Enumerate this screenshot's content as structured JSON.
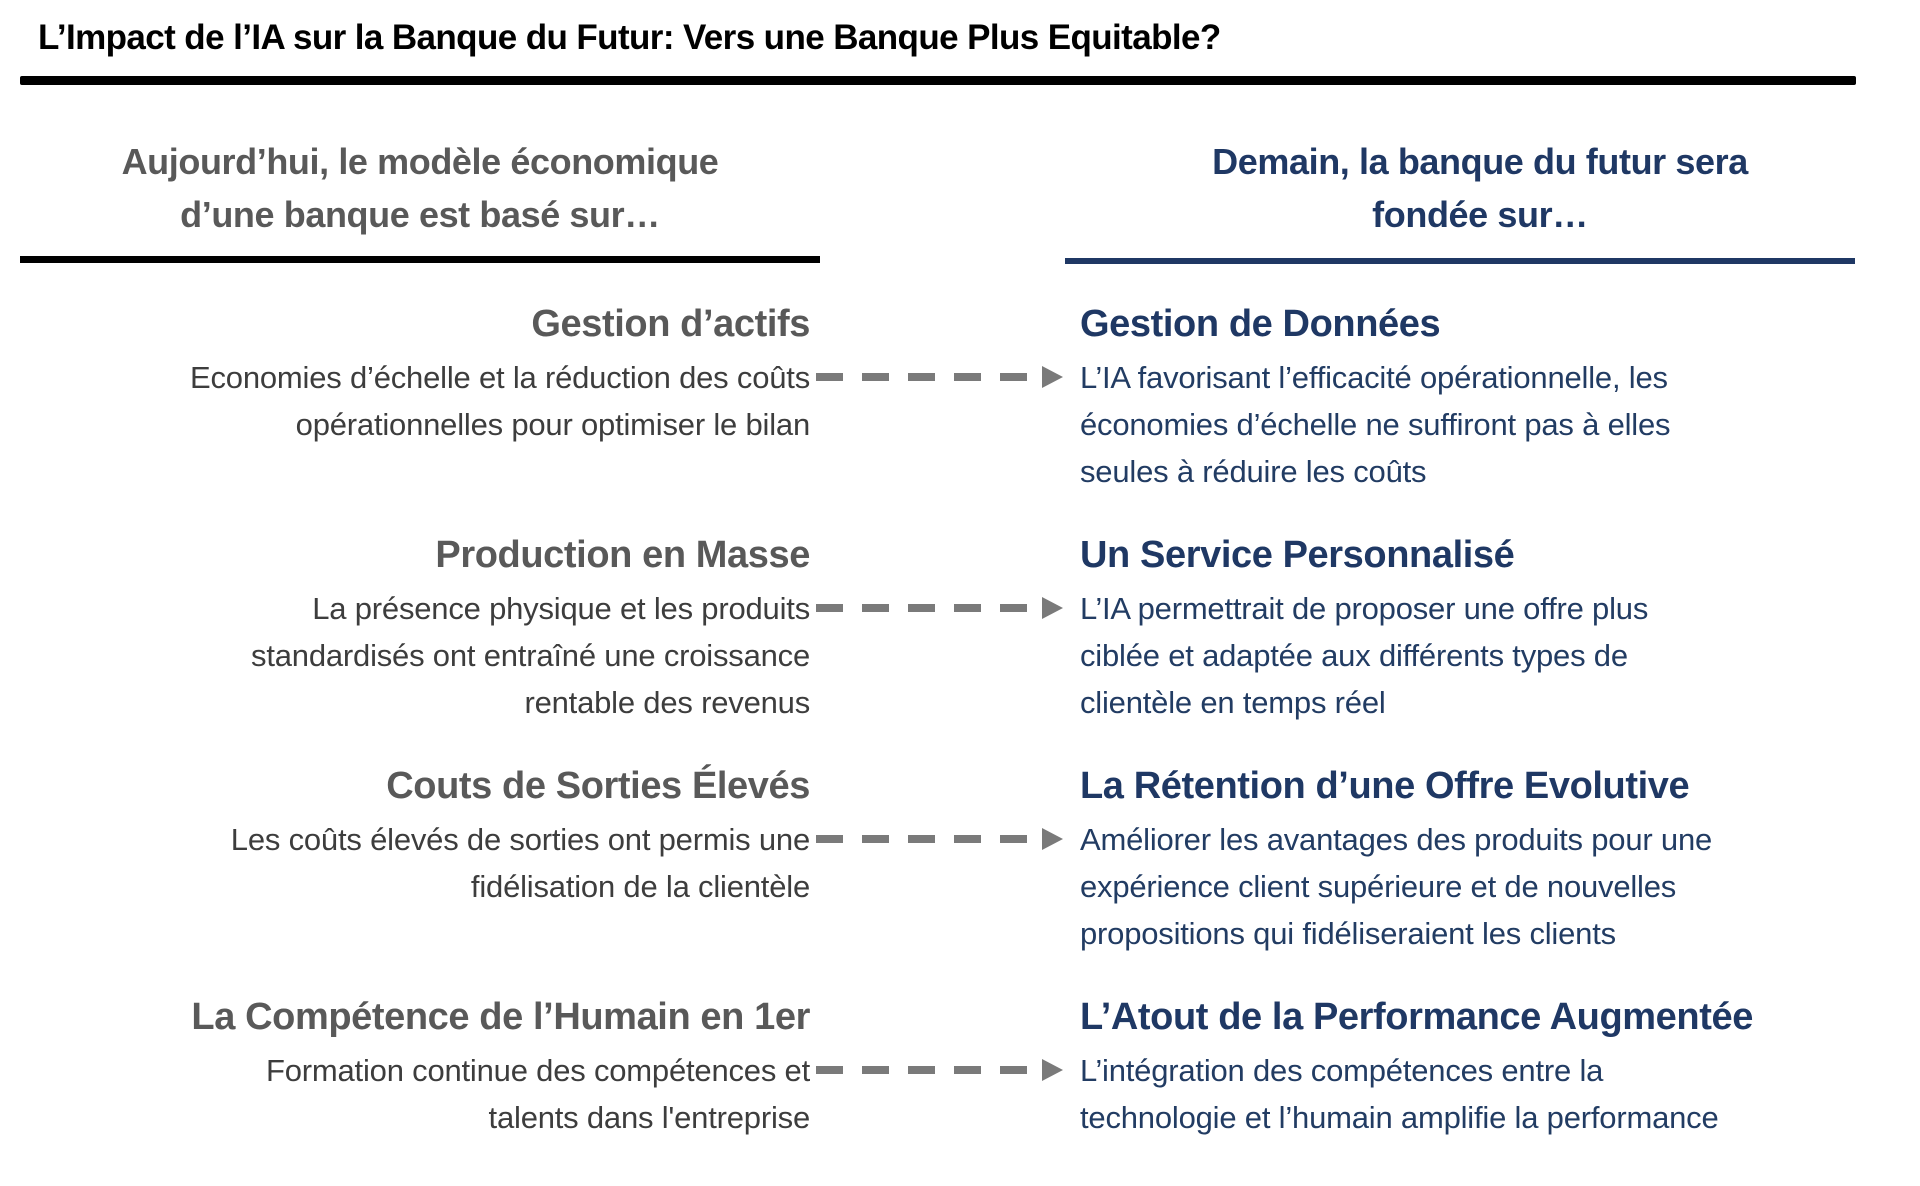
{
  "title": "L’Impact de l’IA sur la Banque du Futur: Vers une Banque Plus Equitable?",
  "colors": {
    "title_black": "#000000",
    "today_gray": "#595959",
    "today_body_gray": "#3d3d3d",
    "future_navy": "#1f3864",
    "future_body_navy": "#223c63",
    "arrow_gray": "#7a7a7a"
  },
  "columns": {
    "left": {
      "header": "Aujourd’hui, le modèle économique\nd’une banque est basé sur…"
    },
    "right": {
      "header": "Demain, la banque du futur sera\nfondée sur…"
    }
  },
  "rows": [
    {
      "left": {
        "title": "Gestion d’actifs",
        "body": "Economies d’échelle et la réduction des coûts\nopérationnelles pour optimiser le bilan"
      },
      "right": {
        "title": "Gestion de Données",
        "body": "L’IA favorisant l’efficacité opérationnelle, les\néconomies d’échelle ne suffiront pas à elles\nseules à réduire les coûts"
      }
    },
    {
      "left": {
        "title": "Production en Masse",
        "body": "La présence physique et les produits\nstandardisés ont entraîné une croissance\nrentable des revenus"
      },
      "right": {
        "title": "Un Service Personnalisé",
        "body": "L’IA permettrait de proposer une offre plus\nciblée et adaptée aux différents types de\nclientèle en temps réel"
      }
    },
    {
      "left": {
        "title": "Couts de Sorties Élevés",
        "body": "Les coûts élevés de sorties ont permis une\nfidélisation de la clientèle"
      },
      "right": {
        "title": "La Rétention d’une Offre Evolutive",
        "body": "Améliorer les avantages des produits pour une\nexpérience client supérieure et de nouvelles\npropositions qui fidéliseraient les clients"
      }
    },
    {
      "left": {
        "title": "La Compétence de l’Humain en 1er",
        "body": "Formation continue des compétences et\ntalents dans l'entreprise"
      },
      "right": {
        "title": "L’Atout de la Performance Augmentée",
        "body": "L’intégration des compétences entre la\ntechnologie et l’humain amplifie la performance"
      }
    }
  ]
}
